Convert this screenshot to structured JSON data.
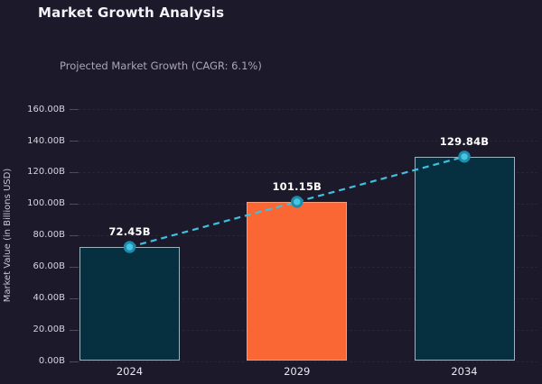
{
  "page": {
    "background": "#1c192b"
  },
  "chart_data": {
    "type": "bar",
    "title": "Market Growth Analysis",
    "subtitle": "Projected Market Growth (CAGR: 6.1%)",
    "categories": [
      "2024",
      "2029",
      "2034"
    ],
    "values": [
      72.45,
      101.15,
      129.84
    ],
    "value_labels": [
      "72.45B",
      "101.15B",
      "129.84B"
    ],
    "xlabel": "",
    "ylabel": "Market Value (in Billions USD)",
    "ylim": [
      0,
      160
    ],
    "ytick_step": 20,
    "ytick_labels": [
      "0.00B",
      "20.00B",
      "40.00B",
      "60.00B",
      "80.00B",
      "100.00B",
      "120.00B",
      "140.00B",
      "160.00B"
    ],
    "grid": "faint dashed horizontal",
    "legend": "none",
    "overlay": "dashed trend line with circular markers connecting bar tops",
    "colors": {
      "background": "#1c192b",
      "bar_fills": [
        "#06303f",
        "#fa6634",
        "#06303f"
      ],
      "bar_borders": [
        "#9db4c0",
        "rgba(255,220,205,0.45)",
        "#9db4c0"
      ],
      "trend_line": "#3ec1de",
      "marker_fill": "#49c3e0",
      "marker_ring": "#1b8cab",
      "title_text": "#f4f3f7",
      "subtitle_text": "#aba4bb"
    }
  }
}
